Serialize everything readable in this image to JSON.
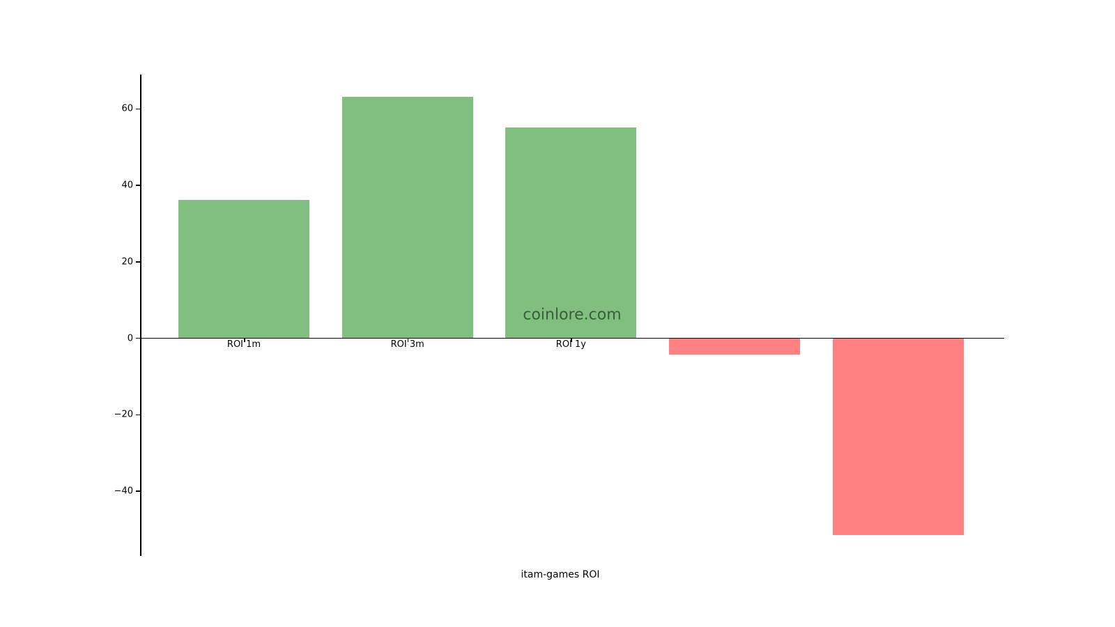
{
  "figure": {
    "watermark": "coinlore.com",
    "xlabel": "itam-games ROI"
  },
  "chart_data": {
    "type": "bar",
    "title": "itam-games ROI",
    "xlabel": "itam-games ROI",
    "ylabel": "",
    "watermark": "coinlore.com",
    "categories": [
      "ROI 1m",
      "ROI 3m",
      "ROI 1y",
      "",
      ""
    ],
    "values": [
      36.2,
      63.1,
      55.1,
      -4.2,
      -51.4
    ],
    "bar_colors": [
      "#80bf80",
      "#80bf80",
      "#80bf80",
      "#ff8080",
      "#ff8080"
    ],
    "positive_color": "#80bf80",
    "negative_color": "#ff8080",
    "yticks": [
      60,
      40,
      20,
      0,
      -20,
      -40
    ],
    "ylim": [
      -57,
      69
    ],
    "grid": false,
    "legend_position": "none"
  }
}
